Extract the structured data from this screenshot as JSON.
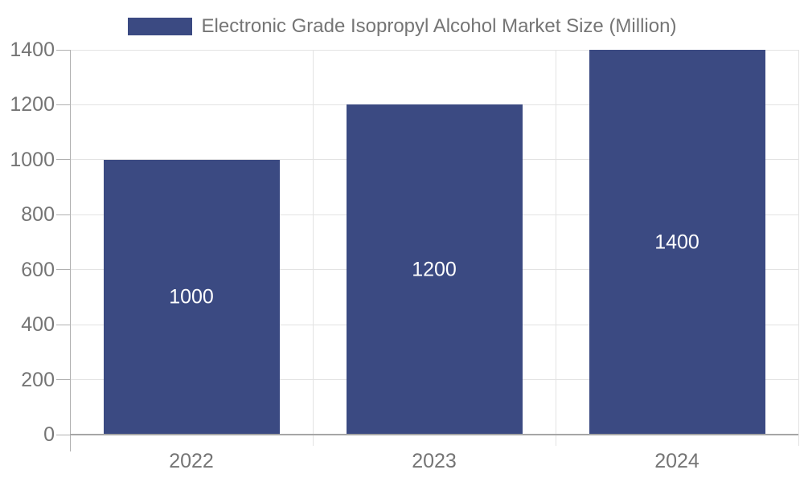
{
  "legend": {
    "label": "Electronic Grade Isopropyl Alcohol Market Size (Million)"
  },
  "chart_data": {
    "type": "bar",
    "title": "Electronic Grade Isopropyl Alcohol Market Size (Million)",
    "categories": [
      "2022",
      "2023",
      "2024"
    ],
    "values": [
      1000,
      1200,
      1400
    ],
    "series": [
      {
        "name": "Electronic Grade Isopropyl Alcohol Market Size (Million)",
        "values": [
          1000,
          1200,
          1400
        ]
      }
    ],
    "bar_value_labels": [
      "1000",
      "1200",
      "1400"
    ],
    "xlabel": "",
    "ylabel": "",
    "ylim": [
      0,
      1400
    ],
    "yticks": [
      0,
      200,
      400,
      600,
      800,
      1000,
      1200,
      1400
    ],
    "grid": true,
    "legend_position": "top",
    "colors": {
      "bar": "#3b4a82",
      "bar_label": "#ffffff",
      "axis_text": "#757575",
      "gridline": "#e3e3e3",
      "axis_line": "#a6a6a6",
      "tick": "#b0b0b0",
      "background": "#ffffff"
    }
  }
}
